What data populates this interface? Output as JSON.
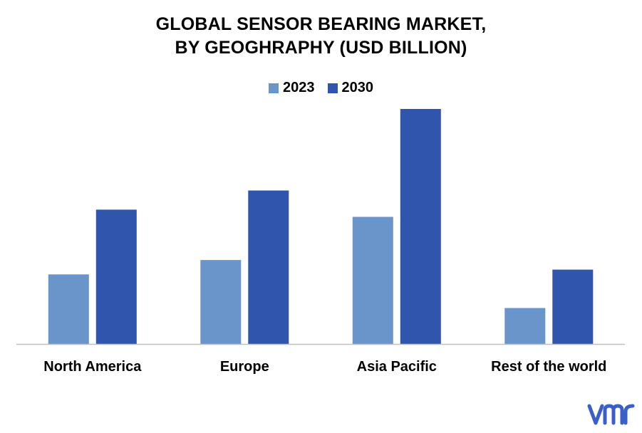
{
  "title_line1": "GLOBAL SENSOR BEARING MARKET,",
  "title_line2": "BY GEOGHRAPHY (USD BILLION)",
  "colors": {
    "series_2023": "#6a95cb",
    "series_2030": "#2f55ad",
    "axis": "#bfbfbf",
    "logo": "#3a5fc8"
  },
  "logo_icon": "vmr-logo-icon",
  "chart_data": {
    "type": "bar",
    "title": "GLOBAL SENSOR BEARING MARKET, BY GEOGHRAPHY (USD BILLION)",
    "categories": [
      "North America",
      "Europe",
      "Asia Pacific",
      "Rest of the world"
    ],
    "series": [
      {
        "name": "2023",
        "values": [
          2.9,
          3.5,
          5.3,
          1.5
        ]
      },
      {
        "name": "2030",
        "values": [
          5.6,
          6.4,
          9.8,
          3.1
        ]
      }
    ],
    "ylim": [
      0,
      10
    ],
    "grid": false,
    "legend_position": "top-center",
    "xlabel": "",
    "ylabel": ""
  }
}
